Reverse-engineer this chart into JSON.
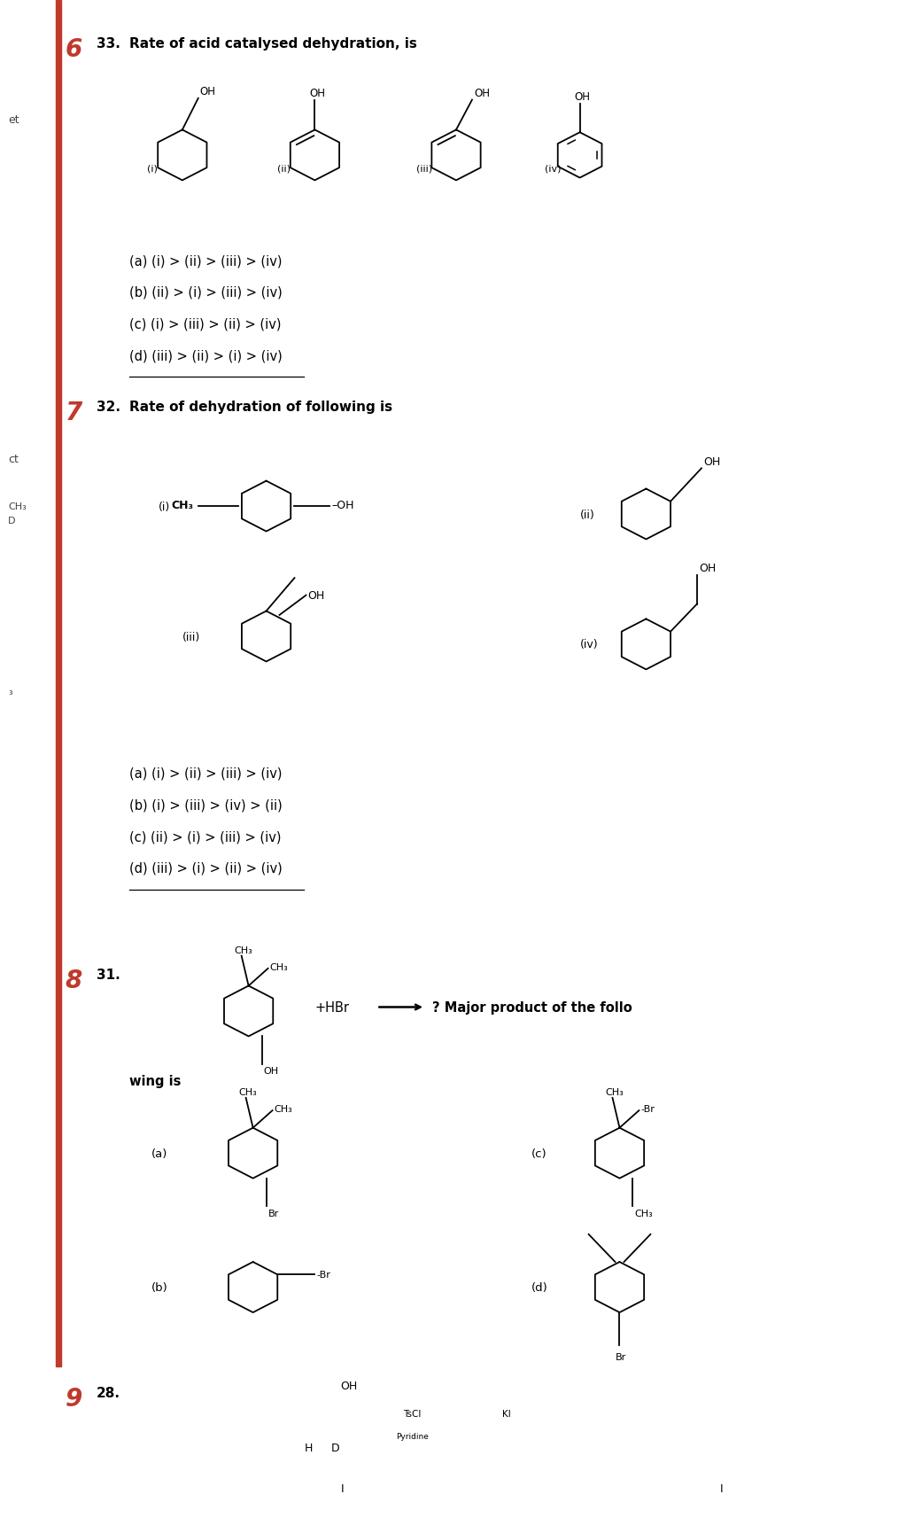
{
  "bg_color": "#ffffff",
  "left_bar_color": "#c0392b",
  "text_color": "#000000",
  "title_color": "#c0392b",
  "page_width": 10.24,
  "page_height": 17.31,
  "q33_options": [
    "(a) (i) > (ii) > (iii) > (iv)",
    "(b) (ii) > (i) > (iii) > (iv)",
    "(c) (i) > (iii) > (ii) > (iv)",
    "(d) (iii) > (ii) > (i) > (iv)"
  ],
  "q32_options": [
    "(a) (i) > (ii) > (iii) > (iv)",
    "(b) (i) > (iii) > (iv) > (ii)",
    "(c) (ii) > (i) > (iii) > (iv)",
    "(d) (iii) > (i) > (ii) > (iv)"
  ],
  "margin_texts": [
    [
      0.08,
      15.8,
      "et",
      9
    ],
    [
      0.08,
      11.5,
      "ct",
      9
    ],
    [
      0.08,
      10.9,
      "CH₃",
      8
    ],
    [
      0.08,
      10.72,
      "D",
      8
    ],
    [
      0.08,
      8.55,
      "₃",
      8
    ]
  ]
}
